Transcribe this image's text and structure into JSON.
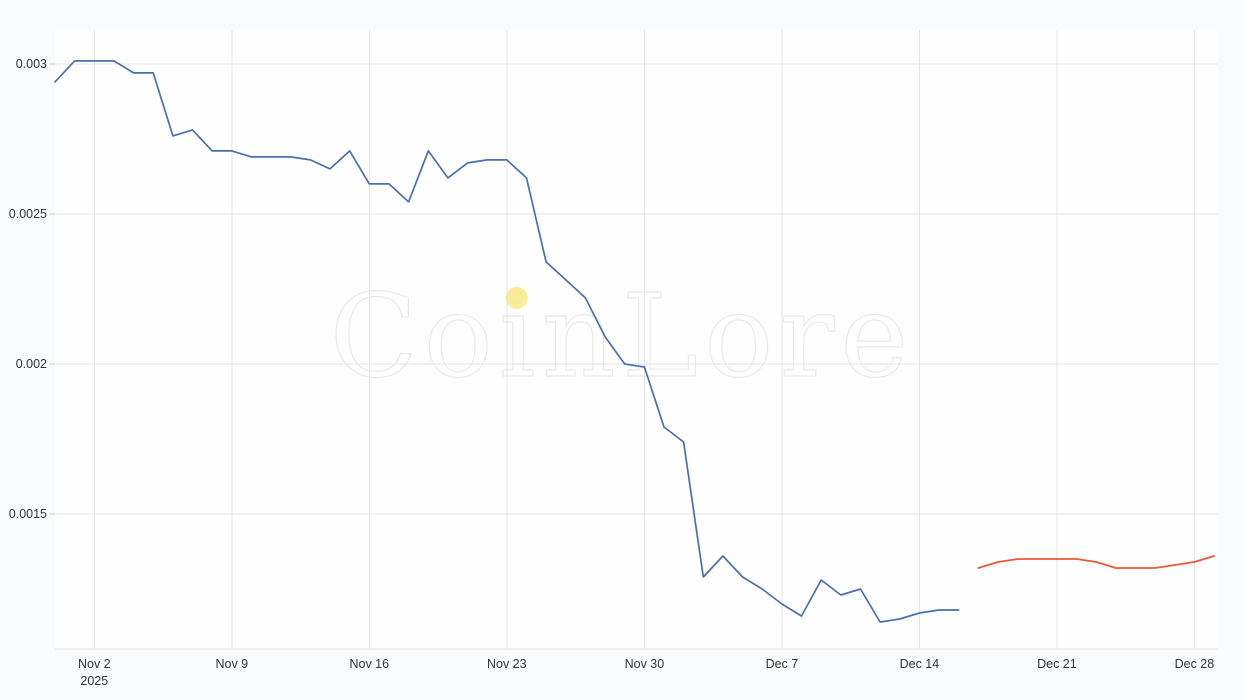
{
  "watermark": "CoinLore",
  "colors": {
    "price_line": "#4a6fb1",
    "recent_line": "#e8593a",
    "highlight_dot": "#f7ec8e",
    "grid": "#e6e6e6",
    "axis_line": "#e2e2e2",
    "tick": "#cccccc",
    "axis_text": "#333333",
    "page_bg": "#fafbfc",
    "plot_bg": "#fefefe",
    "watermark_fill": "#ffffff",
    "watermark_stroke": "#e9e9e9"
  },
  "chart_data": {
    "type": "line",
    "title": "",
    "xlabel": "",
    "ylabel": "",
    "legend": "none",
    "grid": "on",
    "x_axis": {
      "note": "day offsets, day 0 = Oct 31 2025 (two days before the Nov 2 2025 tick)",
      "domain_days": [
        0,
        59.2
      ],
      "ticks": [
        {
          "day": 2,
          "lines": [
            "Nov 2",
            "2025"
          ]
        },
        {
          "day": 9,
          "lines": [
            "Nov 9"
          ]
        },
        {
          "day": 16,
          "lines": [
            "Nov 16"
          ]
        },
        {
          "day": 23,
          "lines": [
            "Nov 23"
          ]
        },
        {
          "day": 30,
          "lines": [
            "Nov 30"
          ]
        },
        {
          "day": 37,
          "lines": [
            "Dec 7"
          ]
        },
        {
          "day": 44,
          "lines": [
            "Dec 14"
          ]
        },
        {
          "day": 51,
          "lines": [
            "Dec 21"
          ]
        },
        {
          "day": 58,
          "lines": [
            "Dec 28"
          ]
        }
      ]
    },
    "y_axis": {
      "domain": [
        0.00105,
        0.003113
      ],
      "ticks": [
        {
          "value": 0.003,
          "label": "0.003"
        },
        {
          "value": 0.0025,
          "label": "0.0025"
        },
        {
          "value": 0.002,
          "label": "0.002"
        },
        {
          "value": 0.0015,
          "label": "0.0015"
        }
      ]
    },
    "series": [
      {
        "name": "price-history",
        "color_key": "price_line",
        "points": [
          [
            0,
            0.00294
          ],
          [
            1,
            0.00301
          ],
          [
            2,
            0.00301
          ],
          [
            3,
            0.00301
          ],
          [
            4,
            0.00297
          ],
          [
            5,
            0.00297
          ],
          [
            6,
            0.00276
          ],
          [
            7,
            0.00278
          ],
          [
            8,
            0.00271
          ],
          [
            9,
            0.00271
          ],
          [
            10,
            0.00269
          ],
          [
            11,
            0.00269
          ],
          [
            12,
            0.00269
          ],
          [
            13,
            0.00268
          ],
          [
            14,
            0.00265
          ],
          [
            15,
            0.00271
          ],
          [
            16,
            0.0026
          ],
          [
            17,
            0.0026
          ],
          [
            18,
            0.00254
          ],
          [
            19,
            0.00271
          ],
          [
            20,
            0.00262
          ],
          [
            21,
            0.00267
          ],
          [
            22,
            0.00268
          ],
          [
            23,
            0.00268
          ],
          [
            24,
            0.00262
          ],
          [
            25,
            0.00234
          ],
          [
            26,
            0.00228
          ],
          [
            27,
            0.00222
          ],
          [
            28,
            0.00209
          ],
          [
            29,
            0.002
          ],
          [
            30,
            0.00199
          ],
          [
            31,
            0.00179
          ],
          [
            32,
            0.00174
          ],
          [
            33,
            0.00129
          ],
          [
            34,
            0.00136
          ],
          [
            35,
            0.00129
          ],
          [
            36,
            0.00125
          ],
          [
            37,
            0.0012
          ],
          [
            38,
            0.00116
          ],
          [
            39,
            0.00128
          ],
          [
            40,
            0.00123
          ],
          [
            41,
            0.00125
          ],
          [
            42,
            0.00114
          ],
          [
            43,
            0.00115
          ],
          [
            44,
            0.00117
          ],
          [
            45,
            0.00118
          ],
          [
            46,
            0.00118
          ]
        ]
      },
      {
        "name": "recent-price",
        "color_key": "recent_line",
        "points": [
          [
            47,
            0.00132
          ],
          [
            48,
            0.00134
          ],
          [
            49,
            0.00135
          ],
          [
            50,
            0.00135
          ],
          [
            51,
            0.00135
          ],
          [
            52,
            0.00135
          ],
          [
            53,
            0.00134
          ],
          [
            54,
            0.00132
          ],
          [
            55,
            0.00132
          ],
          [
            56,
            0.00132
          ],
          [
            57,
            0.00133
          ],
          [
            58,
            0.00134
          ],
          [
            59,
            0.00136
          ]
        ]
      }
    ],
    "highlight_marker": {
      "day": 23.5,
      "value": 0.00222,
      "radius": 11
    }
  }
}
